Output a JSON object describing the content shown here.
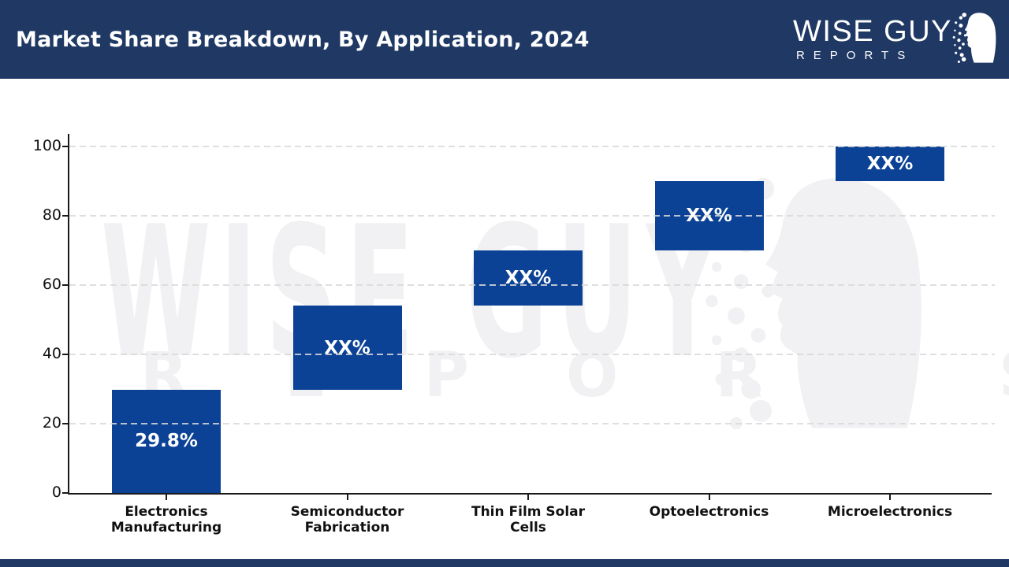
{
  "header": {
    "title": "Market Share Breakdown, By Application, 2024",
    "logo_line1": "WISE GUY",
    "logo_line2": "REPORTS"
  },
  "watermark": {
    "line1": "WISE GUY",
    "line2": "R E P O R T S"
  },
  "colors": {
    "header_bg": "#1f3864",
    "footer_bg": "#1f3864",
    "bar": "#0b4296",
    "value_label": "#ffffff",
    "grid": "#d9d9d9",
    "axis": "#1a1a1a",
    "tick_label": "#111111",
    "watermark": "#f1f1f4"
  },
  "chart_data": {
    "type": "bar",
    "variant": "waterfall",
    "title": "Market Share Breakdown, By Application, 2024",
    "unit": "%",
    "categories": [
      "Electronics Manufacturing",
      "Semiconductor Fabrication",
      "Thin Film Solar Cells",
      "Optoelectronics",
      "Microelectronics"
    ],
    "segments": [
      {
        "category": "Electronics Manufacturing",
        "start": 0,
        "end": 29.8,
        "label": "29.8%"
      },
      {
        "category": "Semiconductor Fabrication",
        "start": 29.8,
        "end": 54,
        "label": "XX%"
      },
      {
        "category": "Thin Film Solar Cells",
        "start": 54,
        "end": 70,
        "label": "XX%"
      },
      {
        "category": "Optoelectronics",
        "start": 70,
        "end": 90,
        "label": "XX%"
      },
      {
        "category": "Microelectronics",
        "start": 90,
        "end": 100,
        "label": "XX%"
      }
    ],
    "xlabel": "",
    "ylabel": "",
    "yticks": [
      0,
      20,
      40,
      60,
      80,
      100
    ],
    "ylim": [
      0,
      104
    ],
    "grid": "horizontal-dashed",
    "grid_above_bars": true,
    "legend": "none"
  }
}
